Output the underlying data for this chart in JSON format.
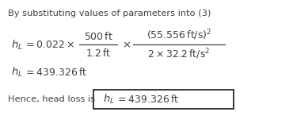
{
  "line1": "By substituting values of parameters into (3)",
  "bg_color": "#ffffff",
  "text_color": "#404040",
  "box_color": "#000000",
  "figsize": [
    3.7,
    1.7
  ],
  "dpi": 100
}
